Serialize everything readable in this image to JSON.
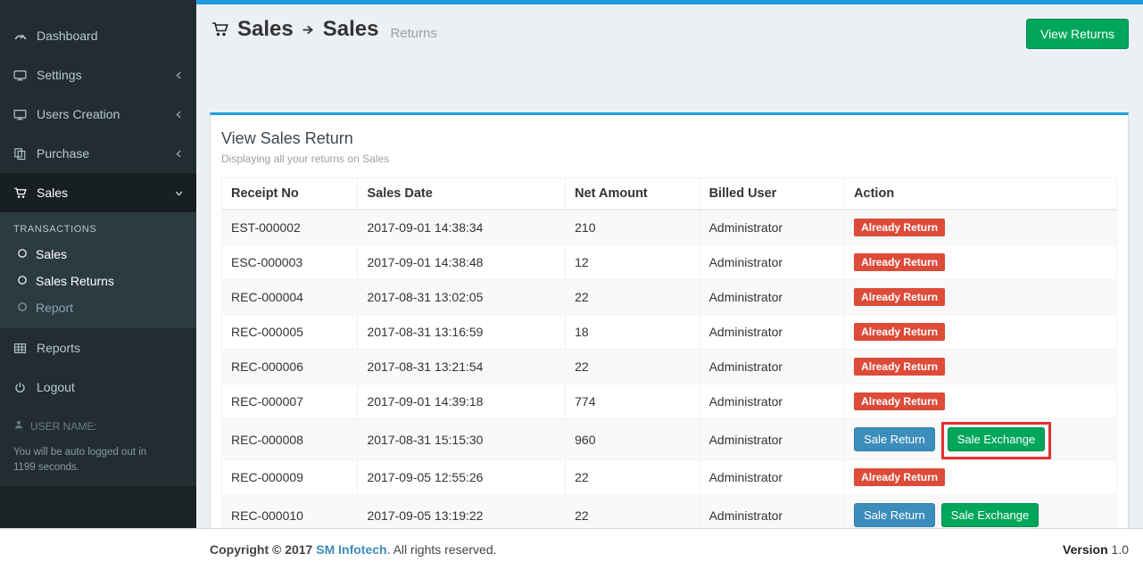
{
  "sidebar": {
    "items": [
      {
        "label": "Dashboard",
        "icon": "dashboard-icon"
      },
      {
        "label": "Settings",
        "icon": "monitor-icon",
        "chevron": "left"
      },
      {
        "label": "Users Creation",
        "icon": "monitor-icon",
        "chevron": "left"
      },
      {
        "label": "Purchase",
        "icon": "copy-icon",
        "chevron": "left"
      },
      {
        "label": "Sales",
        "icon": "cart-icon",
        "chevron": "down",
        "active": true
      }
    ],
    "transactions_header": "TRANSACTIONS",
    "submenu": [
      {
        "label": "Sales",
        "dim": false
      },
      {
        "label": "Sales Returns",
        "dim": false,
        "active": true
      },
      {
        "label": "Report",
        "dim": true
      }
    ],
    "lower_items": [
      {
        "label": "Reports",
        "icon": "table-icon"
      },
      {
        "label": "Logout",
        "icon": "power-icon"
      }
    ],
    "user_label": "USER NAME:",
    "auto_logout_notice": "You will be auto logged out in 1199 seconds."
  },
  "header": {
    "title_primary": "Sales",
    "title_secondary": "Sales",
    "title_sub": "Returns",
    "view_returns_button": "View Returns"
  },
  "panel": {
    "title": "View Sales Return",
    "subtitle": "Displaying all your returns on Sales"
  },
  "table": {
    "columns": [
      "Receipt No",
      "Sales Date",
      "Net Amount",
      "Billed User",
      "Action"
    ],
    "rows": [
      {
        "receipt_no": "EST-000002",
        "sales_date": "2017-09-01 14:38:34",
        "net_amount": "210",
        "billed_user": "Administrator",
        "actions": [
          {
            "label": "Already Return",
            "style": "danger",
            "name": "already-return-badge",
            "interactable": false
          }
        ]
      },
      {
        "receipt_no": "ESC-000003",
        "sales_date": "2017-09-01 14:38:48",
        "net_amount": "12",
        "billed_user": "Administrator",
        "actions": [
          {
            "label": "Already Return",
            "style": "danger",
            "name": "already-return-badge",
            "interactable": false
          }
        ]
      },
      {
        "receipt_no": "REC-000004",
        "sales_date": "2017-08-31 13:02:05",
        "net_amount": "22",
        "billed_user": "Administrator",
        "actions": [
          {
            "label": "Already Return",
            "style": "danger",
            "name": "already-return-badge",
            "interactable": false
          }
        ]
      },
      {
        "receipt_no": "REC-000005",
        "sales_date": "2017-08-31 13:16:59",
        "net_amount": "18",
        "billed_user": "Administrator",
        "actions": [
          {
            "label": "Already Return",
            "style": "danger",
            "name": "already-return-badge",
            "interactable": false
          }
        ]
      },
      {
        "receipt_no": "REC-000006",
        "sales_date": "2017-08-31 13:21:54",
        "net_amount": "22",
        "billed_user": "Administrator",
        "actions": [
          {
            "label": "Already Return",
            "style": "danger",
            "name": "already-return-badge",
            "interactable": false
          }
        ]
      },
      {
        "receipt_no": "REC-000007",
        "sales_date": "2017-09-01 14:39:18",
        "net_amount": "774",
        "billed_user": "Administrator",
        "actions": [
          {
            "label": "Already Return",
            "style": "danger",
            "name": "already-return-badge",
            "interactable": false
          }
        ]
      },
      {
        "receipt_no": "REC-000008",
        "sales_date": "2017-08-31 15:15:30",
        "net_amount": "960",
        "billed_user": "Administrator",
        "actions": [
          {
            "label": "Sale Return",
            "style": "primary",
            "name": "sale-return-button",
            "interactable": true
          },
          {
            "label": "Sale Exchange",
            "style": "success",
            "name": "sale-exchange-button",
            "interactable": true,
            "highlighted": true
          }
        ]
      },
      {
        "receipt_no": "REC-000009",
        "sales_date": "2017-09-05 12:55:26",
        "net_amount": "22",
        "billed_user": "Administrator",
        "actions": [
          {
            "label": "Already Return",
            "style": "danger",
            "name": "already-return-badge",
            "interactable": false
          }
        ]
      },
      {
        "receipt_no": "REC-000010",
        "sales_date": "2017-09-05 13:19:22",
        "net_amount": "22",
        "billed_user": "Administrator",
        "actions": [
          {
            "label": "Sale Return",
            "style": "primary",
            "name": "sale-return-button",
            "interactable": true
          },
          {
            "label": "Sale Exchange",
            "style": "success",
            "name": "sale-exchange-button",
            "interactable": true
          }
        ]
      }
    ]
  },
  "footer": {
    "copyright_prefix": "Copyright © 2017",
    "company": "SM Infotech",
    "copyright_suffix": ". All rights reserved.",
    "version_label": "Version",
    "version_value": "1.0"
  },
  "colors": {
    "accent": "#1e9de3",
    "primary": "#3c8dbc",
    "success": "#00a65a",
    "danger": "#dd4b39",
    "annotation": "#e53030",
    "sidebar_bg": "#222d32",
    "submenu_bg": "#2c3b41",
    "sidebar_active_bg": "#181f23",
    "body_bg": "#ecf0f5"
  }
}
